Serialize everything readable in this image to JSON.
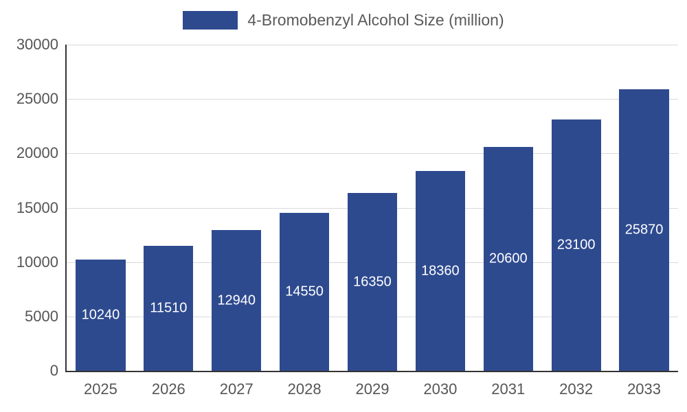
{
  "chart_data": {
    "type": "bar",
    "title": "4-Bromobenzyl Alcohol Size (million)",
    "categories": [
      "2025",
      "2026",
      "2027",
      "2028",
      "2029",
      "2030",
      "2031",
      "2032",
      "2033"
    ],
    "values": [
      10240,
      11510,
      12940,
      14550,
      16350,
      18360,
      20600,
      23100,
      25870
    ],
    "xlabel": "",
    "ylabel": "",
    "ylim": [
      0,
      30000
    ],
    "ytick_step": 5000,
    "ytick_labels": [
      "0",
      "5000",
      "10000",
      "15000",
      "20000",
      "25000",
      "30000"
    ],
    "grid": true,
    "legend_position": "top",
    "colors": {
      "bar": "#2e4a8f",
      "bar_value_label": "#ffffff",
      "axis_line": "#333333",
      "gridline": "#d9d9d9",
      "tick_label": "#555555",
      "legend_text": "#5a5a5a",
      "background": "#ffffff"
    }
  }
}
